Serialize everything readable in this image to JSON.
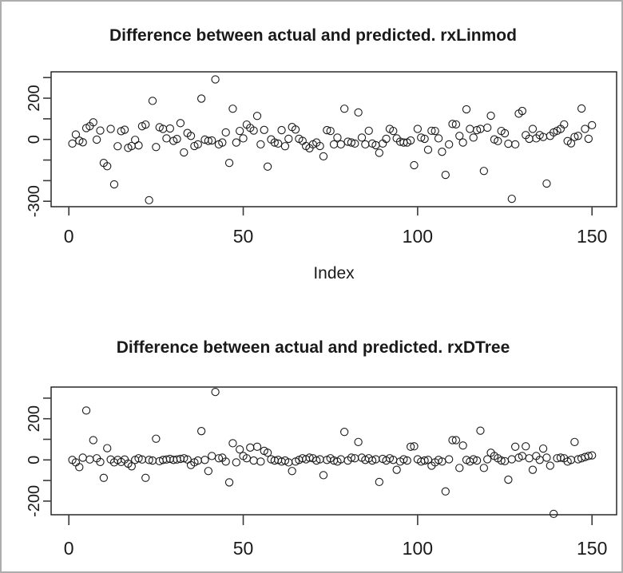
{
  "window": {
    "background": "#ffffff",
    "border_color": "#adadad",
    "foreground": "#1a1a1a"
  },
  "chart_data": [
    {
      "type": "scatter",
      "title": "Difference between actual and predicted. rxLinmod",
      "xlabel": "Index",
      "ylabel": "",
      "marker": "open-circle",
      "grid": false,
      "legend": "none",
      "x_ticks": [
        0,
        50,
        100,
        150
      ],
      "y_ticks": [
        300,
        200,
        100,
        0,
        -100,
        -200,
        -300
      ],
      "y_ticks_labeled": [
        200,
        0,
        -300
      ],
      "xlim": [
        -5,
        157
      ],
      "ylim": [
        -320,
        310
      ],
      "x_note": "x is the observation index 1..150 (implicit array position + 1)",
      "values": [
        -20,
        24,
        -6,
        -14,
        55,
        64,
        83,
        -1,
        43,
        -114,
        -130,
        51,
        -218,
        -33,
        40,
        47,
        -41,
        -32,
        -2,
        -29,
        64,
        72,
        -295,
        187,
        -37,
        59,
        51,
        5,
        53,
        -7,
        2,
        79,
        -63,
        31,
        17,
        -32,
        -24,
        198,
        -1,
        -7,
        -5,
        291,
        -24,
        -15,
        34,
        -114,
        149,
        -15,
        41,
        5,
        72,
        56,
        43,
        114,
        -24,
        46,
        -132,
        0,
        -15,
        -20,
        45,
        -33,
        3,
        60,
        48,
        3,
        -7,
        -32,
        -43,
        -24,
        -15,
        -32,
        -82,
        45,
        41,
        -24,
        9,
        -24,
        149,
        -11,
        -15,
        -20,
        131,
        9,
        -24,
        42,
        -20,
        -28,
        -65,
        -20,
        3,
        51,
        41,
        5,
        -11,
        -15,
        -15,
        -5,
        -125,
        51,
        9,
        3,
        -50,
        42,
        41,
        5,
        -60,
        -172,
        -24,
        75,
        73,
        17,
        -15,
        146,
        51,
        9,
        45,
        51,
        -153,
        57,
        115,
        0,
        -8,
        41,
        30,
        -21,
        -288,
        -24,
        125,
        138,
        21,
        3,
        51,
        5,
        21,
        12,
        -214,
        17,
        34,
        42,
        51,
        73,
        -8,
        -19,
        12,
        17,
        150,
        51,
        3,
        69
      ]
    },
    {
      "type": "scatter",
      "title": "Difference between actual and predicted. rxDTree",
      "xlabel": "",
      "ylabel": "",
      "marker": "open-circle",
      "grid": false,
      "legend": "none",
      "x_ticks": [
        0,
        50,
        100,
        150
      ],
      "y_ticks": [
        300,
        200,
        100,
        0,
        -100,
        -200
      ],
      "y_ticks_labeled": [
        200,
        0,
        -200
      ],
      "xlim": [
        -5,
        157
      ],
      "ylim": [
        -270,
        350
      ],
      "x_note": "x is the observation index 1..150 (implicit array position + 1)",
      "values": [
        0,
        -12,
        -35,
        11,
        240,
        2,
        96,
        8,
        -10,
        -87,
        57,
        2,
        -12,
        0,
        -10,
        2,
        -18,
        -31,
        0,
        8,
        2,
        -87,
        0,
        -3,
        103,
        -6,
        0,
        2,
        5,
        0,
        2,
        5,
        8,
        2,
        -25,
        -12,
        -3,
        140,
        0,
        -54,
        19,
        330,
        8,
        11,
        -8,
        -109,
        81,
        -12,
        51,
        19,
        8,
        60,
        -3,
        64,
        -8,
        44,
        35,
        3,
        -3,
        0,
        -8,
        -3,
        -12,
        -54,
        -8,
        0,
        8,
        3,
        11,
        8,
        -3,
        3,
        -74,
        0,
        8,
        -3,
        -8,
        3,
        136,
        -3,
        11,
        8,
        87,
        11,
        0,
        8,
        -3,
        3,
        -107,
        5,
        -3,
        8,
        0,
        -48,
        -8,
        3,
        -3,
        64,
        66,
        3,
        -8,
        -3,
        0,
        -28,
        -12,
        0,
        -8,
        -153,
        3,
        96,
        96,
        -39,
        70,
        0,
        -8,
        3,
        -3,
        142,
        -39,
        3,
        35,
        19,
        8,
        -3,
        -6,
        -96,
        3,
        64,
        11,
        19,
        66,
        8,
        -48,
        19,
        0,
        55,
        11,
        -28,
        -262,
        8,
        11,
        8,
        -8,
        0,
        87,
        3,
        8,
        14,
        19,
        22
      ]
    }
  ]
}
